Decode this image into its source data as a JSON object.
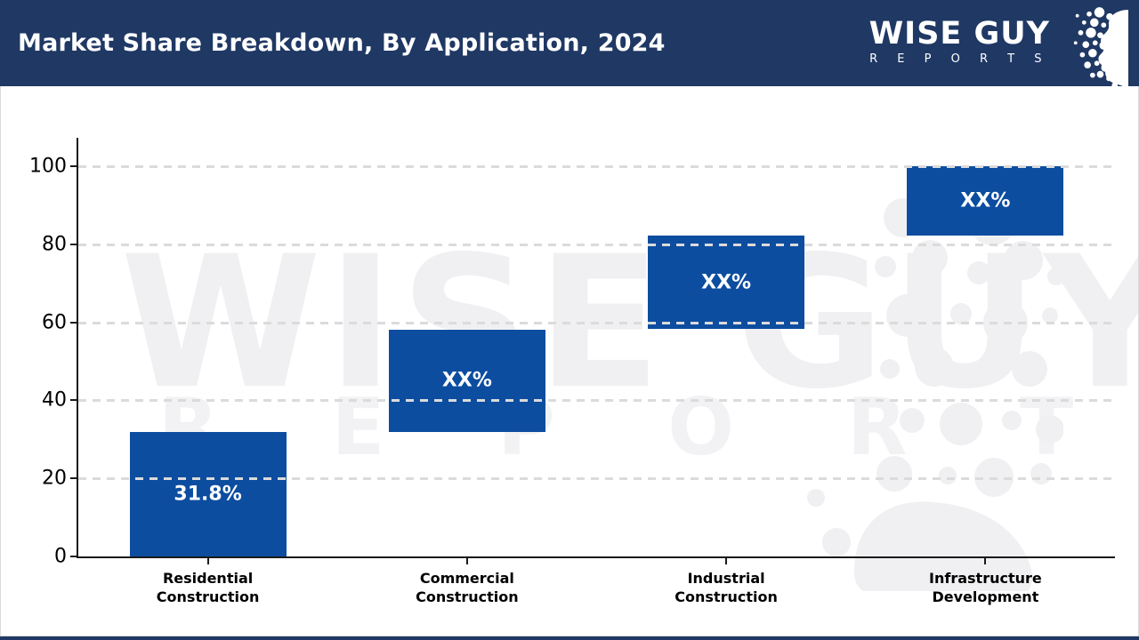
{
  "header": {
    "title": "Market Share Breakdown, By Application, 2024",
    "brand_line1": "WISE GUY",
    "brand_line2": "R E P O R T S",
    "bg_color": "#1F3864"
  },
  "watermark": {
    "line1": "WISE GUY",
    "line2": "R E P O R T S"
  },
  "chart_data": {
    "type": "bar",
    "subtype": "waterfall",
    "title": "Market Share Breakdown, By Application, 2024",
    "categories": [
      "Residential\nConstruction",
      "Commercial\nConstruction",
      "Industrial\nConstruction",
      "Infrastructure\nDevelopment"
    ],
    "segments": [
      {
        "category": "Residential Construction",
        "start": 0,
        "end": 31.8,
        "label": "31.8%"
      },
      {
        "category": "Commercial Construction",
        "start": 31.8,
        "end": 58.2,
        "label": "XX%"
      },
      {
        "category": "Industrial Construction",
        "start": 58.2,
        "end": 82.3,
        "label": "XX%"
      },
      {
        "category": "Infrastructure Development",
        "start": 82.3,
        "end": 100,
        "label": "XX%"
      }
    ],
    "yticks": [
      0,
      20,
      40,
      60,
      80,
      100
    ],
    "ylim": [
      0,
      107
    ],
    "xlabel": "",
    "ylabel": "",
    "bar_color": "#0C4DA0",
    "grid": "dashed-horizontal",
    "grid_color": "#dbdbdb",
    "legend": "none"
  }
}
